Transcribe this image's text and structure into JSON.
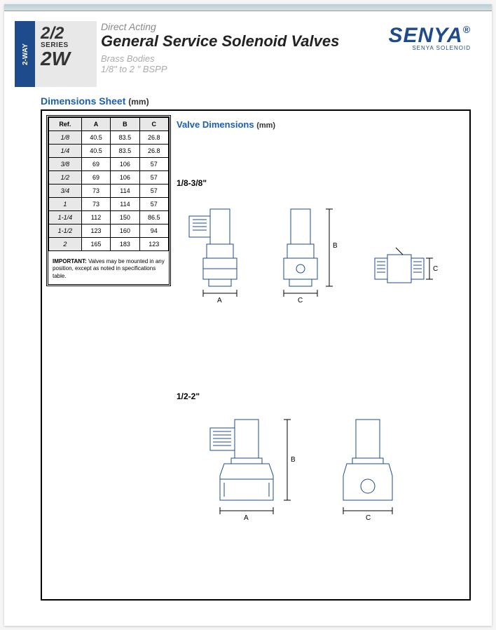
{
  "sidetab": "2-WAY",
  "series": {
    "frac": "2/2",
    "label": "SERIES",
    "code": "2W"
  },
  "title": {
    "line1": "Direct Acting",
    "line2": "General Service Solenoid Valves",
    "line3": "Brass Bodies",
    "line4": "1/8\" to 2 \" BSPP"
  },
  "brand": {
    "name": "SENYA",
    "sub": "SENYA SOLENOID",
    "reg": "®"
  },
  "section_title": "Dimensions Sheet",
  "section_unit": "(mm)",
  "valve_dim_title": "Valve Dimensions",
  "valve_dim_unit": "(mm)",
  "size_label_1": "1/8-3/8\"",
  "size_label_2": "1/2-2\"",
  "table": {
    "headers": [
      "Ref.",
      "A",
      "B",
      "C"
    ],
    "rows": [
      [
        "1/8",
        "40.5",
        "83.5",
        "26.8"
      ],
      [
        "1/4",
        "40.5",
        "83.5",
        "26.8"
      ],
      [
        "3/8",
        "69",
        "106",
        "57"
      ],
      [
        "1/2",
        "69",
        "106",
        "57"
      ],
      [
        "3/4",
        "73",
        "114",
        "57"
      ],
      [
        "1",
        "73",
        "114",
        "57"
      ],
      [
        "1-1/4",
        "112",
        "150",
        "86.5"
      ],
      [
        "1-1/2",
        "123",
        "160",
        "94"
      ],
      [
        "2",
        "165",
        "183",
        "123"
      ]
    ],
    "note_label": "IMPORTANT:",
    "note_text": " Valves may be mounted in any position, except as noted in specifications table."
  },
  "dims": {
    "A": "A",
    "B": "B",
    "C": "C"
  },
  "colors": {
    "brand_blue": "#1e4b8c",
    "link_blue": "#1a5fb4",
    "gray_bg": "#e8e8e8",
    "draw_stroke": "#1e4b8c"
  }
}
